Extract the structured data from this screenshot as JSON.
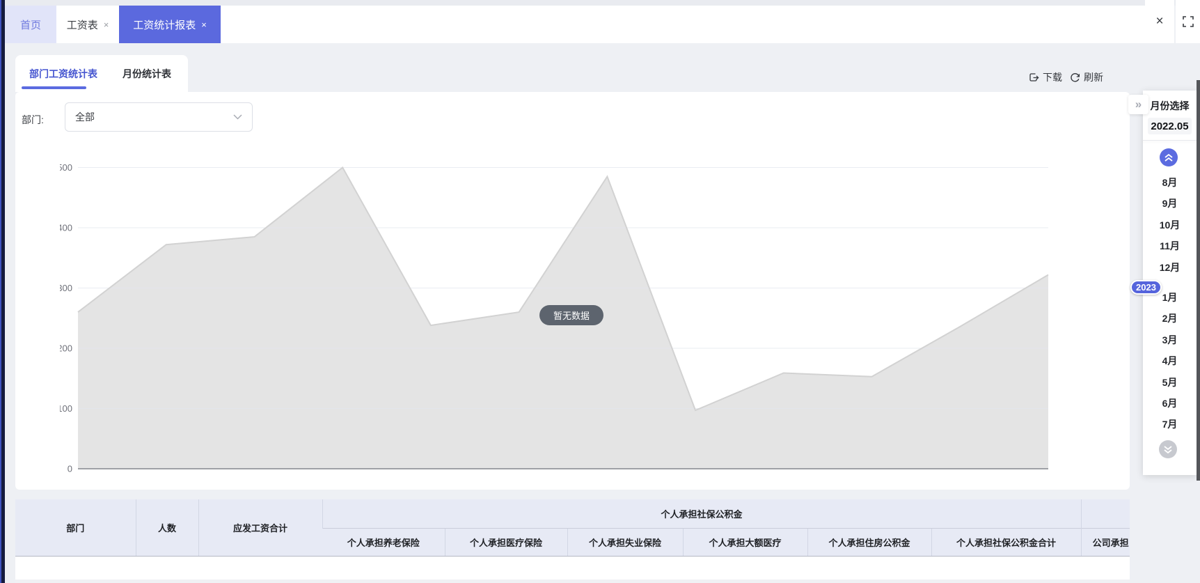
{
  "top_tabs": [
    {
      "label": "首页"
    },
    {
      "label": "工资表",
      "close": "×"
    },
    {
      "label": "工资统计报表",
      "close": "×"
    }
  ],
  "window": {
    "close": "×"
  },
  "report_tabs": [
    {
      "label": "部门工资统计表"
    },
    {
      "label": "月份统计表"
    }
  ],
  "toolbar": {
    "download": "下载",
    "refresh": "刷新"
  },
  "filter": {
    "label": "部门:",
    "value": "全部"
  },
  "chart_data": {
    "type": "area",
    "x": [
      1,
      2,
      3,
      4,
      5,
      6,
      7,
      8,
      9,
      10,
      11,
      12
    ],
    "x_labels_visible": false,
    "values": [
      260,
      372,
      385,
      500,
      238,
      260,
      485,
      97,
      159,
      153,
      236,
      322
    ],
    "yticks": [
      0,
      100,
      200,
      300,
      400,
      500
    ],
    "ylim": [
      0,
      500
    ],
    "grid": true,
    "area_color": "#e4e4e4",
    "line_color": "#d2d2d2",
    "axis_color": "#6E7079",
    "grid_color": "#e3e6ee",
    "no_data_label": "暂无数据"
  },
  "month_panel": {
    "collapse_icon": "»",
    "title": "月份选择",
    "current": "2022.05",
    "months_before": [
      "8月",
      "9月",
      "10月",
      "11月",
      "12月"
    ],
    "year_badge": "2023",
    "months_after": [
      "1月",
      "2月",
      "3月",
      "4月",
      "5月",
      "6月",
      "7月"
    ]
  },
  "table": {
    "col_department": "部门",
    "col_headcount": "人数",
    "col_gross_total": "应发工资合计",
    "group_personal": "个人承担社保公积金",
    "personal_subcols": [
      "个人承担养老保险",
      "个人承担医疗保险",
      "个人承担失业保险",
      "个人承担大额医疗",
      "个人承担住房公积金",
      "个人承担社保公积金合计"
    ],
    "col_company_partial": "公司承担",
    "rows": []
  },
  "colors": {
    "accent": "#5b69de",
    "home_tab_bg": "#e1e4f9",
    "tooltip_bg": "#5d646e"
  }
}
